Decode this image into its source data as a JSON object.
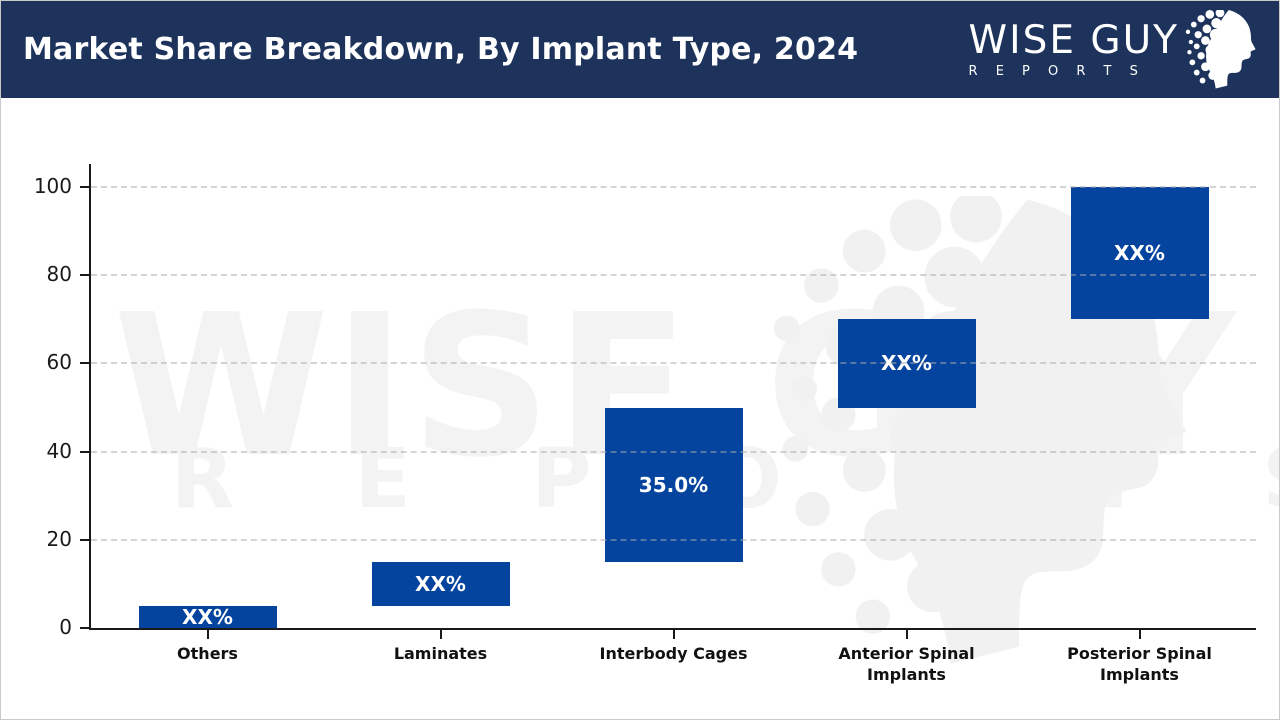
{
  "header": {
    "title": "Market Share Breakdown, By Implant Type, 2024",
    "logo": {
      "primary": "WISE GUY",
      "secondary": "R E P O R T S"
    }
  },
  "watermark": {
    "primary": "WISE GUY",
    "secondary": "R E P O R T S"
  },
  "colors": {
    "header_bg": "#1E335C",
    "bar": "#04449E",
    "axis": "#1a1a1a",
    "watermark": "#f1f1f1"
  },
  "chart_data": {
    "type": "bar",
    "subtype": "floating-waterfall",
    "title": "Market Share Breakdown, By Implant Type, 2024",
    "categories": [
      "Others",
      "Laminates",
      "Interbody Cages",
      "Anterior Spinal Implants",
      "Posterior Spinal Implants"
    ],
    "segments": [
      {
        "category": "Others",
        "start": 0,
        "end": 5,
        "label": "XX%"
      },
      {
        "category": "Laminates",
        "start": 5,
        "end": 15,
        "label": "XX%"
      },
      {
        "category": "Interbody Cages",
        "start": 15,
        "end": 50,
        "label": "35.0%"
      },
      {
        "category": "Anterior Spinal Implants",
        "start": 50,
        "end": 70,
        "label": "XX%"
      },
      {
        "category": "Posterior Spinal Implants",
        "start": 70,
        "end": 100,
        "label": "XX%"
      }
    ],
    "yticks": [
      0,
      20,
      40,
      60,
      80,
      100
    ],
    "ylim": [
      0,
      105
    ],
    "xlabel": "",
    "ylabel": "",
    "grid": {
      "axis": "y",
      "style": "dashed"
    },
    "legend": "none",
    "bar_color": "#04449E"
  }
}
